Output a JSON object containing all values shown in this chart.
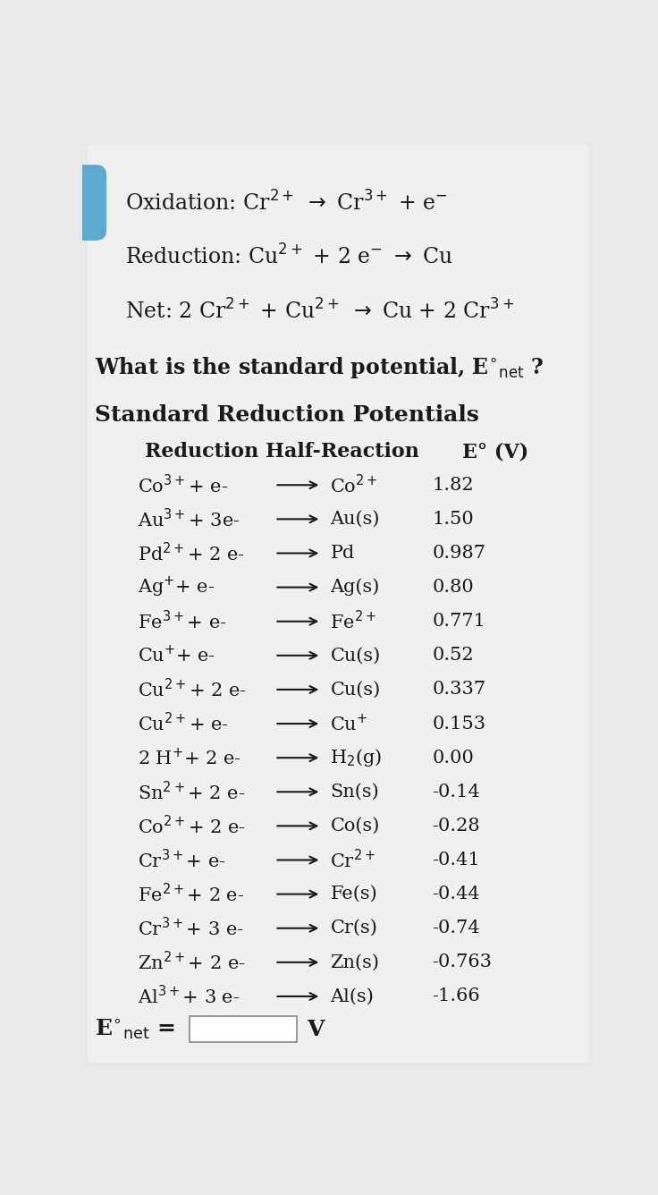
{
  "bg_color": "#e8e8e8",
  "panel_color": "#f0f0f0",
  "blue_accent": "#5aabcf",
  "text_color": "#1a1a1a",
  "fig_w": 7.36,
  "fig_h": 13.36,
  "dpi": 100,
  "oxidation_line": "Oxidation: Cr$^{2+}$ $\\rightarrow$ Cr$^{3+}$ + e$^{-}$",
  "reduction_line": "Reduction: Cu$^{2+}$ + 2 e$^{-}$ $\\rightarrow$ Cu",
  "net_line": "Net: 2 Cr$^{2+}$ + Cu$^{2+}$ $\\rightarrow$ Cu + 2 Cr$^{3+}$",
  "question_line": "What is the standard potential, E$^{\\circ}$$_{\\mathrm{net}}$ ?",
  "section_title": "Standard Reduction Potentials",
  "table_header_col1": "Reduction Half-Reaction",
  "table_header_col2": "E° (V)",
  "table_rows": [
    {
      "left": "Co$^{3+}$+ e-",
      "right": "Co$^{2+}$",
      "val": "1.82"
    },
    {
      "left": "Au$^{3+}$+ 3e-",
      "right": "Au(s)",
      "val": "1.50"
    },
    {
      "left": "Pd$^{2+}$+ 2 e-",
      "right": "Pd",
      "val": "0.987"
    },
    {
      "left": "Ag$^{+}$+ e-",
      "right": "Ag(s)",
      "val": "0.80"
    },
    {
      "left": "Fe$^{3+}$+ e-",
      "right": "Fe$^{2+}$",
      "val": "0.771"
    },
    {
      "left": "Cu$^{+}$+ e-",
      "right": "Cu(s)",
      "val": "0.52"
    },
    {
      "left": "Cu$^{2+}$+ 2 e-",
      "right": "Cu(s)",
      "val": "0.337"
    },
    {
      "left": "Cu$^{2+}$+ e-",
      "right": "Cu$^{+}$",
      "val": "0.153"
    },
    {
      "left": "2 H$^{+}$+ 2 e-",
      "right": "H$_2$(g)",
      "val": "0.00"
    },
    {
      "left": "Sn$^{2+}$+ 2 e-",
      "right": "Sn(s)",
      "val": "-0.14"
    },
    {
      "left": "Co$^{2+}$+ 2 e-",
      "right": "Co(s)",
      "val": "-0.28"
    },
    {
      "left": "Cr$^{3+}$+ e-",
      "right": "Cr$^{2+}$",
      "val": "-0.41"
    },
    {
      "left": "Fe$^{2+}$+ 2 e-",
      "right": "Fe(s)",
      "val": "-0.44"
    },
    {
      "left": "Cr$^{3+}$+ 3 e-",
      "right": "Cr(s)",
      "val": "-0.74"
    },
    {
      "left": "Zn$^{2+}$+ 2 e-",
      "right": "Zn(s)",
      "val": "-0.763"
    },
    {
      "left": "Al$^{3+}$+ 3 e-",
      "right": "Al(s)",
      "val": "-1.66"
    }
  ],
  "eq_fs": 17,
  "q_fs": 17,
  "sec_fs": 18,
  "hdr_fs": 16,
  "row_fs": 15
}
